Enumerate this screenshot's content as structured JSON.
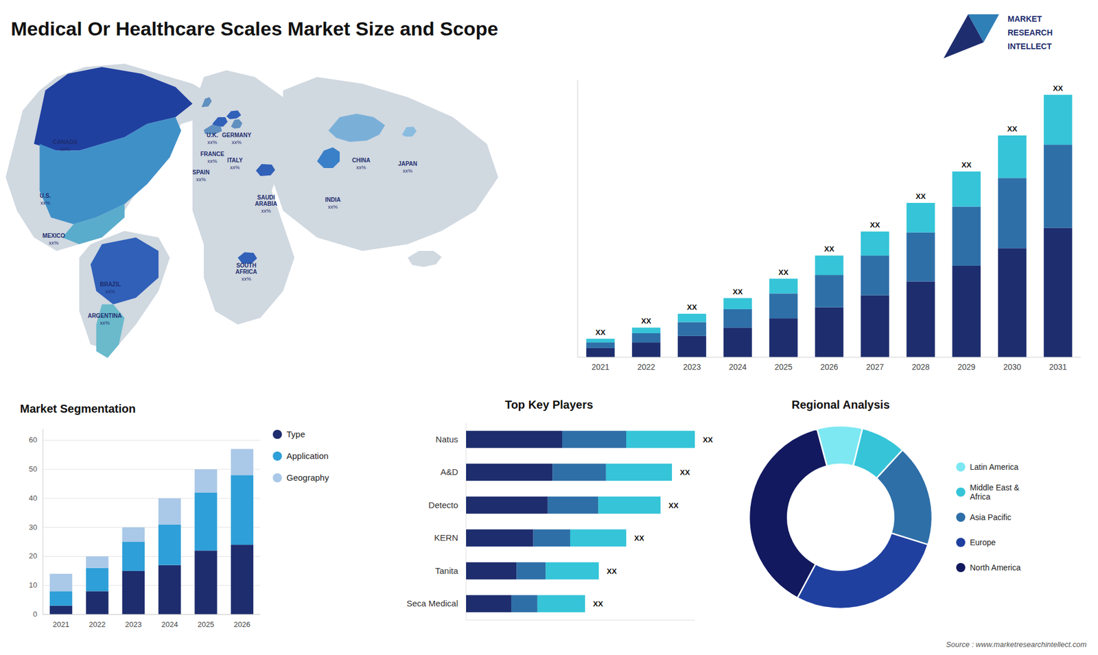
{
  "chart_data": [
    {
      "type": "bar",
      "title": "Medical Or Healthcare Scales Market Size and Scope",
      "categories": [
        "2021",
        "2022",
        "2023",
        "2024",
        "2025",
        "2026",
        "2027",
        "2028",
        "2029",
        "2030",
        "2031"
      ],
      "series": [
        {
          "color": "#1e2d6e",
          "values": [
            1.0,
            1.6,
            2.3,
            3.2,
            4.2,
            5.4,
            6.7,
            8.2,
            9.9,
            11.8,
            14.0
          ]
        },
        {
          "color": "#2e6fa8",
          "values": [
            0.6,
            1.0,
            1.5,
            2.0,
            2.7,
            3.5,
            4.3,
            5.3,
            6.4,
            7.6,
            9.0
          ]
        },
        {
          "color": "#35c4d8",
          "values": [
            0.4,
            0.6,
            0.9,
            1.2,
            1.6,
            2.1,
            2.6,
            3.2,
            3.8,
            4.6,
            5.4
          ]
        }
      ],
      "stacked": true,
      "ylim": [
        0,
        30
      ],
      "yticks": [],
      "tick_labels": "x",
      "annotations": [
        "XX",
        "XX",
        "XX",
        "XX",
        "XX",
        "XX",
        "XX",
        "XX",
        "XX",
        "XX",
        "XX"
      ],
      "logo": [
        "MARKET",
        "RESEARCH",
        "INTELLECT"
      ],
      "source": "Source : www.marketresearchintellect.com"
    },
    {
      "type": "map",
      "categories": [
        "CANADA",
        "U.S.",
        "MEXICO",
        "BRAZIL",
        "ARGENTINA",
        "U.K.",
        "FRANCE",
        "SPAIN",
        "GERMANY",
        "ITALY",
        "SAUDI\nARABIA",
        "SOUTH\nAFRICA",
        "CHINA",
        "INDIA",
        "JAPAN"
      ],
      "labels": [
        "xx%",
        "xx%",
        "xx%",
        "xx%",
        "xx%",
        "xx%",
        "xx%",
        "xx%",
        "xx%",
        "xx%",
        "xx%",
        "xx%",
        "xx%",
        "xx%",
        "xx%"
      ],
      "colors": [
        "#2040a0",
        "#4090c8",
        "#5aaccc",
        "#3060b8",
        "#6abacc",
        "#6090c0",
        "#3060b8",
        "#6090c0",
        "#3060b8",
        "#6090c0",
        "#3060b8",
        "#3060b8",
        "#7ab0d8",
        "#3a80c8",
        "#8abce0"
      ],
      "color": "#d0d8e0"
    },
    {
      "type": "bar",
      "title": "Market Segmentation",
      "categories": [
        "2021",
        "2022",
        "2023",
        "2024",
        "2025",
        "2026"
      ],
      "series": [
        {
          "name": "Type",
          "color": "#1e2d6e",
          "values": [
            3,
            8,
            15,
            17,
            22,
            24
          ]
        },
        {
          "name": "Application",
          "color": "#2e9fd8",
          "values": [
            5,
            8,
            10,
            14,
            20,
            24
          ]
        },
        {
          "name": "Geography",
          "color": "#aac8e8",
          "values": [
            6,
            4,
            5,
            9,
            8,
            9
          ]
        }
      ],
      "stacked": true,
      "ylim": [
        0,
        64
      ],
      "yticks": [
        0,
        10,
        20,
        30,
        40,
        50,
        60
      ],
      "grid": true,
      "legend": "right"
    },
    {
      "type": "bar",
      "title": "Top Key Players",
      "orientation": "horizontal",
      "stacked": true,
      "categories": [
        "Natus",
        "A&D",
        "Detecto",
        "KERN",
        "Tanita",
        "Seca Medical"
      ],
      "series": [
        {
          "color": "#1e2d6e",
          "values": [
            0.42,
            0.378,
            0.357,
            0.294,
            0.2204,
            0.1976
          ]
        },
        {
          "color": "#2e6fa8",
          "values": [
            0.28,
            0.234,
            0.221,
            0.161,
            0.1276,
            0.1144
          ]
        },
        {
          "color": "#35c4d8",
          "values": [
            0.3,
            0.288,
            0.272,
            0.245,
            0.232,
            0.208
          ]
        }
      ],
      "xlim": [
        0,
        1
      ],
      "tick_labels": false,
      "annotations": [
        "XX",
        "XX",
        "XX",
        "XX",
        "XX",
        "XX"
      ]
    },
    {
      "type": "donut",
      "title": "Regional Analysis",
      "categories": [
        "Latin America",
        "Middle East &\nAfrica",
        "Asia Pacific",
        "Europe",
        "North America"
      ],
      "values": [
        8,
        8,
        18,
        28,
        38
      ],
      "colors": [
        "#7de8f2",
        "#35c4d8",
        "#2e6fa8",
        "#2040a0",
        "#12195e"
      ],
      "legend": "right"
    }
  ]
}
